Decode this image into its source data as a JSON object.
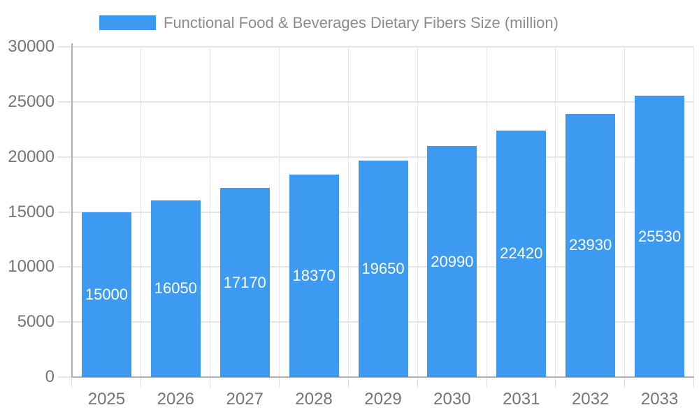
{
  "chart_data": {
    "type": "bar",
    "legend_label": "Functional Food & Beverages Dietary Fibers Size (million)",
    "categories": [
      "2025",
      "2026",
      "2027",
      "2028",
      "2029",
      "2030",
      "2031",
      "2032",
      "2033"
    ],
    "values": [
      15000,
      16050,
      17170,
      18370,
      19650,
      20990,
      22420,
      23930,
      25530
    ],
    "series_name": "Functional Food & Beverages Dietary Fibers Size (million)",
    "xlabel": "",
    "ylabel": "",
    "ylim": [
      0,
      30000
    ],
    "yticks": [
      0,
      5000,
      10000,
      15000,
      20000,
      25000,
      30000
    ],
    "grid": "both",
    "legend_position": "top",
    "bar_label_position": "inside-center"
  },
  "colors": {
    "bar_fill": "#3d9af1",
    "bar_label_text": "#ffffff",
    "legend_text": "#8c8c8c",
    "axis_text": "#757575",
    "gridline": "#e6e6e6",
    "axis_line": "#b0b0b0",
    "tick_line": "#dcdcdc",
    "background": "#ffffff"
  }
}
